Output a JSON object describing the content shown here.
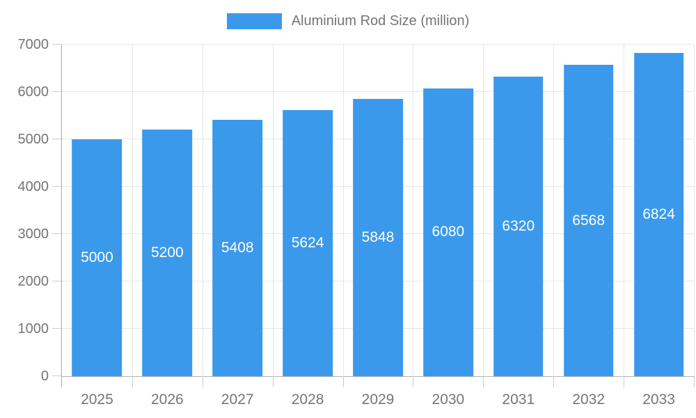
{
  "legend": {
    "swatch_color": "#3b99ec"
  },
  "chart_data": {
    "type": "bar",
    "title": "Aluminium Rod Size (million)",
    "categories": [
      "2025",
      "2026",
      "2027",
      "2028",
      "2029",
      "2030",
      "2031",
      "2032",
      "2033"
    ],
    "values": [
      5000,
      5200,
      5408,
      5624,
      5848,
      6080,
      6320,
      6568,
      6824
    ],
    "value_labels": [
      "5000",
      "5200",
      "5408",
      "5624",
      "5848",
      "6080",
      "6320",
      "6568",
      "6824"
    ],
    "xlabel": "",
    "ylabel": "",
    "ylim": [
      0,
      7000
    ],
    "yticks": [
      0,
      1000,
      2000,
      3000,
      4000,
      5000,
      6000,
      7000
    ],
    "ytick_labels": [
      "0",
      "1000",
      "2000",
      "3000",
      "4000",
      "5000",
      "6000",
      "7000"
    ],
    "grid": true,
    "legend_position": "top",
    "bar_color": "#3b99ec",
    "value_label_color": "#ffffff",
    "axis_text_color": "#757575",
    "gridline_color": "#e6e6e6"
  }
}
